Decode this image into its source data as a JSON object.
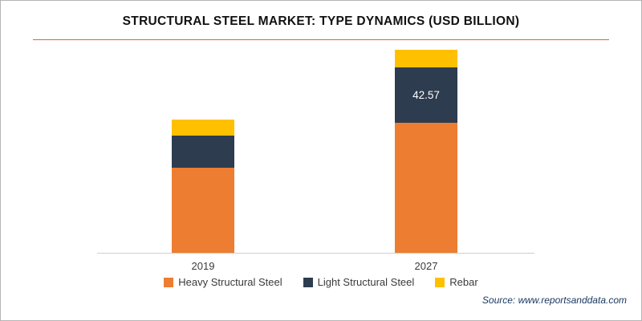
{
  "title": "STRUCTURAL STEEL MARKET: TYPE DYNAMICS (USD BILLION)",
  "source": "Source: www.reportsanddata.com",
  "accent_colors": {
    "title_rule": "#e8622a",
    "heavy_structural_steel": "#ed7d31",
    "light_structural_steel": "#2e3c4f",
    "rebar": "#ffc000"
  },
  "chart_data": {
    "type": "bar",
    "stacked": true,
    "title": "STRUCTURAL STEEL MARKET: TYPE DYNAMICS (USD BILLION)",
    "xlabel": "",
    "ylabel": "",
    "categories": [
      "2019",
      "2027"
    ],
    "series": [
      {
        "name": "Heavy Structural Steel",
        "color": "#ed7d31",
        "values": [
          65.6,
          100.3
        ]
      },
      {
        "name": "Light Structural Steel",
        "color": "#2e3c4f",
        "values": [
          24.5,
          42.57
        ]
      },
      {
        "name": "Rebar",
        "color": "#ffc000",
        "values": [
          12.3,
          13.5
        ]
      }
    ],
    "data_labels": [
      {
        "category": "2027",
        "series": "Light Structural Steel",
        "text": "42.57"
      }
    ],
    "legend_position": "bottom",
    "grid": false,
    "axis_line": "x-only"
  }
}
